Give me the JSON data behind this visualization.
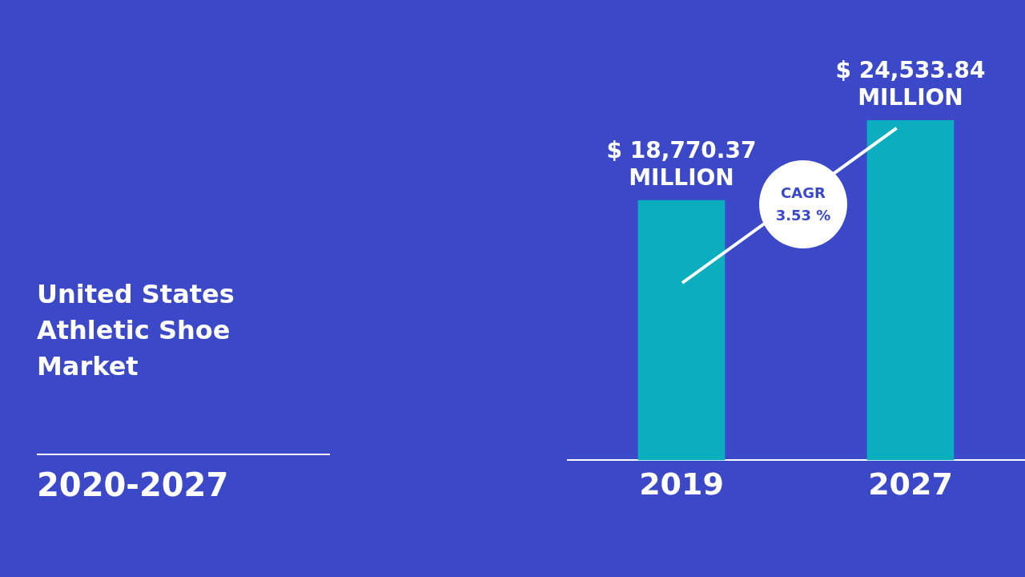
{
  "chart_data": {
    "type": "bar",
    "title": "United States Athletic Shoe Market",
    "subtitle": "2020-2027",
    "categories": [
      "2019",
      "2027"
    ],
    "values": [
      18770.37,
      24533.84
    ],
    "value_labels": [
      "$ 18,770.37 MILLION",
      "$ 24,533.84 MILLION"
    ],
    "color": "#0aaebf",
    "annotations": [
      "CAGR 3.53 %"
    ],
    "grid": false,
    "legend": false
  }
}
